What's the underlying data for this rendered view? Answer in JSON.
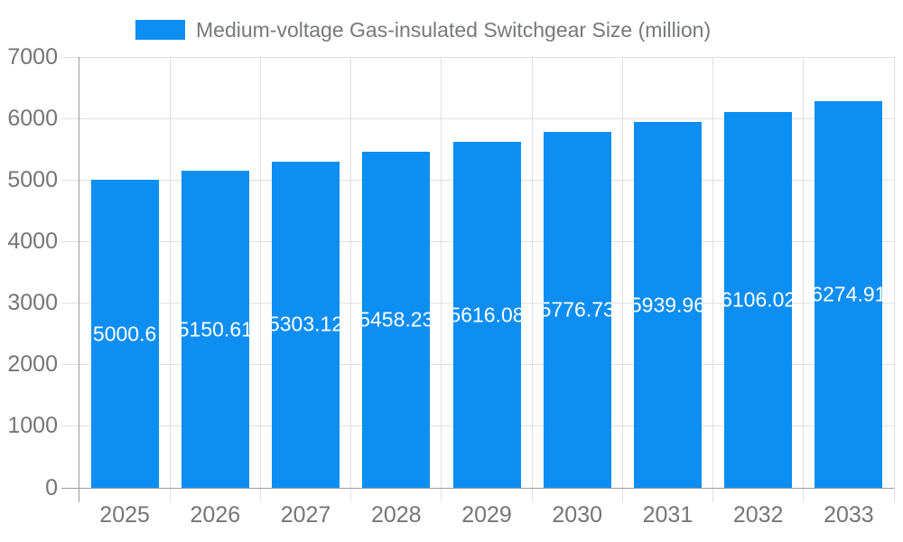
{
  "legend": {
    "label": "Medium-voltage Gas-insulated Switchgear Size (million)"
  },
  "chart_data": {
    "type": "bar",
    "title": "Medium-voltage Gas-insulated Switchgear Size (million)",
    "categories": [
      "2025",
      "2026",
      "2027",
      "2028",
      "2029",
      "2030",
      "2031",
      "2032",
      "2033"
    ],
    "series": [
      {
        "name": "Medium-voltage Gas-insulated Switchgear Size (million)",
        "values": [
          5000.6,
          5150.61,
          5303.12,
          5458.23,
          5616.08,
          5776.73,
          5939.96,
          6106.02,
          6274.91
        ],
        "value_labels": [
          "5000.6",
          "5150.61",
          "5303.12",
          "5458.23",
          "5616.08",
          "5776.73",
          "5939.96",
          "6106.02",
          "6274.91"
        ]
      }
    ],
    "xlabel": "",
    "ylabel": "",
    "ylim": [
      0,
      7000
    ],
    "yticks": [
      0,
      1000,
      2000,
      3000,
      4000,
      5000,
      6000,
      7000
    ],
    "grid": true,
    "legend_position": "top",
    "bar_labels_inside": true,
    "colors": {
      "bar": "#0d8ef2",
      "axis_text": "#757575",
      "title_text": "#77787a",
      "bar_label_text": "#ffffff",
      "gridline": "#e0e0e0",
      "axis_line": "#9a9a9a"
    }
  }
}
